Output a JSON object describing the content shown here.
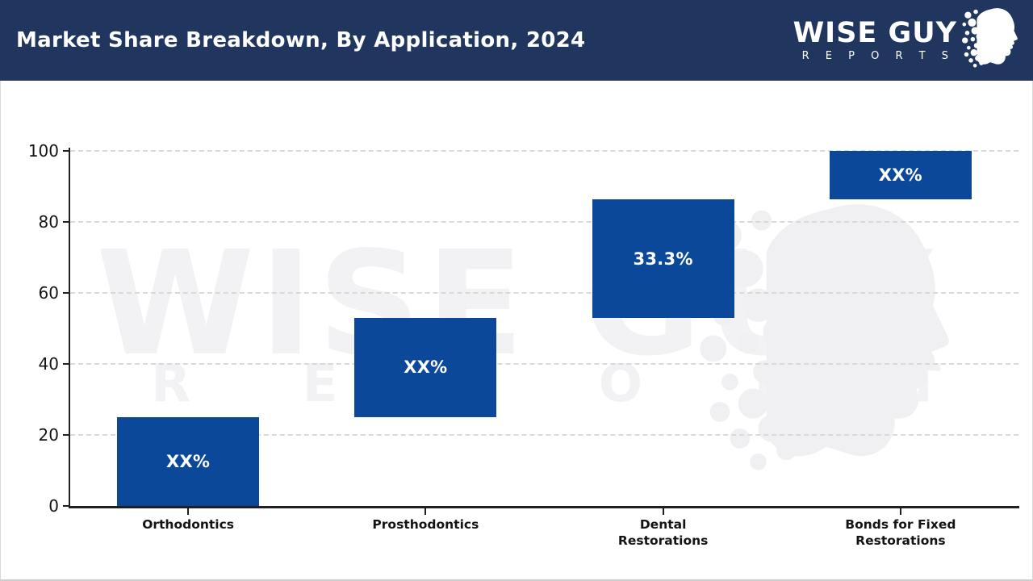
{
  "header": {
    "title": "Market Share Breakdown, By Application, 2024",
    "logo": {
      "brand": "WISE GUY",
      "tagline": "R E P O R T S",
      "face_icon": "dotted-head-profile"
    }
  },
  "watermark": {
    "brand": "WISE GUY",
    "tagline": "R E P O R T S",
    "face_icon": "dotted-head-profile"
  },
  "colors": {
    "header_bg": "#21365f",
    "bar": "#0b489a",
    "grid": "#d9d9d9",
    "axis": "#1f1f1f",
    "watermark": "#f2f2f4",
    "value_label": "#ffffff"
  },
  "chart_data": {
    "type": "bar",
    "subtype": "floating-segment-waterfall",
    "title": "Market Share Breakdown, By Application, 2024",
    "xlabel": "",
    "ylabel": "",
    "ylim": [
      0,
      100
    ],
    "y_ticks": [
      0,
      20,
      40,
      60,
      80,
      100
    ],
    "grid": "horizontal-dashed",
    "legend": "none",
    "categories": [
      "Orthodontics",
      "Prosthodontics",
      "Dental Restorations",
      "Bonds for Fixed Restorations"
    ],
    "category_label_lines": [
      [
        "Orthodontics"
      ],
      [
        "Prosthodontics"
      ],
      [
        "Dental",
        "Restorations"
      ],
      [
        "Bonds for Fixed",
        "Restorations"
      ]
    ],
    "bars": [
      {
        "category": "Orthodontics",
        "start": 0,
        "end": 25,
        "label": "XX%"
      },
      {
        "category": "Prosthodontics",
        "start": 25,
        "end": 53,
        "label": "XX%"
      },
      {
        "category": "Dental Restorations",
        "start": 53,
        "end": 86.3,
        "label": "33.3%"
      },
      {
        "category": "Bonds for Fixed Restorations",
        "start": 86.3,
        "end": 100,
        "label": "XX%"
      }
    ]
  }
}
